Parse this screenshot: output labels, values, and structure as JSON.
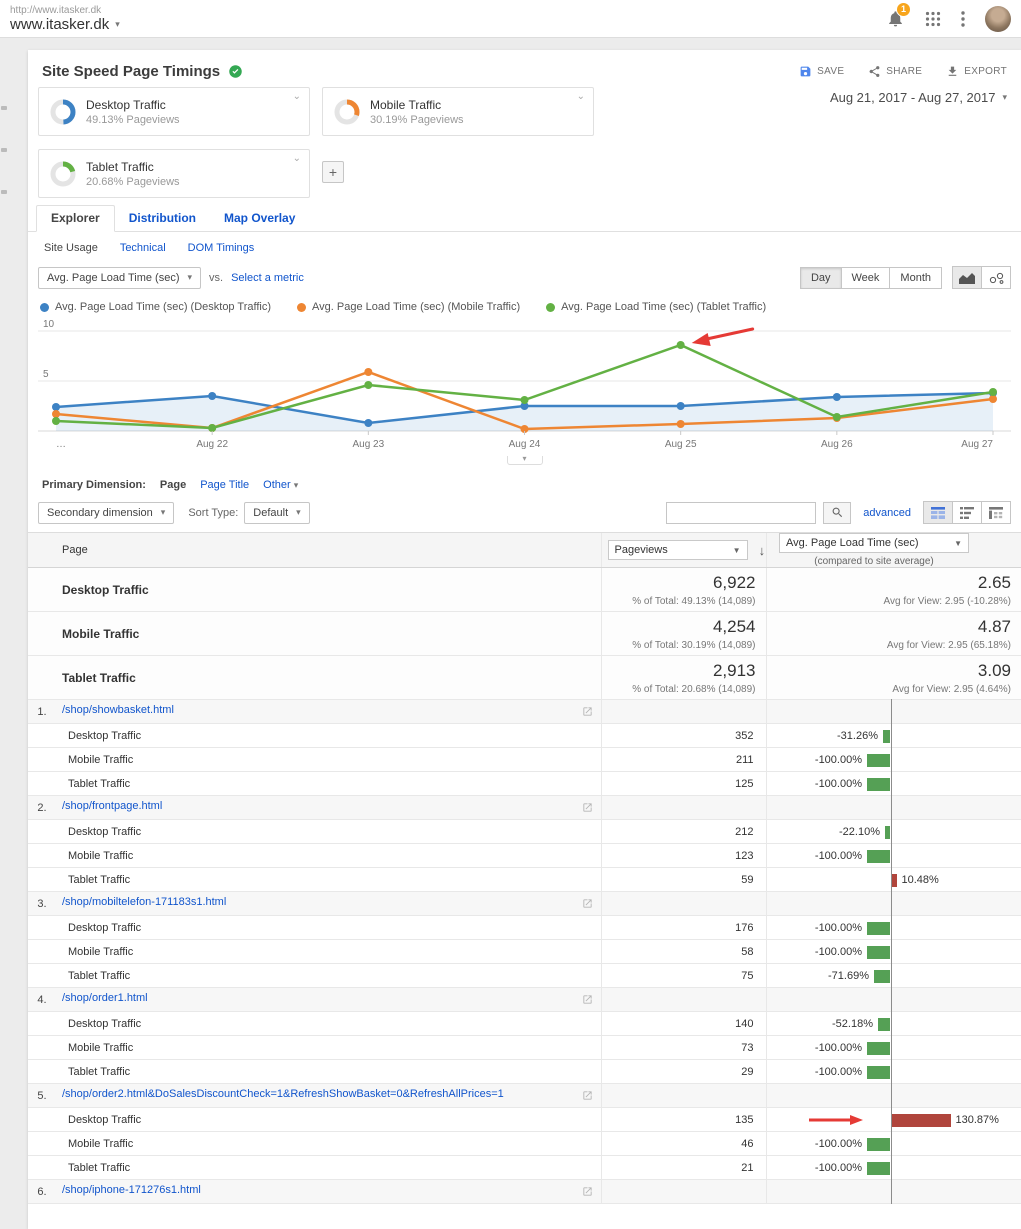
{
  "appbar": {
    "url": "http://www.itasker.dk",
    "site": "www.itasker.dk",
    "badge": "1"
  },
  "report": {
    "title": "Site Speed Page Timings",
    "save": "SAVE",
    "share": "SHARE",
    "export": "EXPORT",
    "date_range": "Aug 21, 2017 - Aug 27, 2017",
    "add_segment": "+"
  },
  "segments": [
    {
      "name": "Desktop Traffic",
      "detail": "49.13% Pageviews",
      "color": "#3d82c4",
      "fraction": 0.49
    },
    {
      "name": "Mobile Traffic",
      "detail": "30.19% Pageviews",
      "color": "#ee8633",
      "fraction": 0.3
    },
    {
      "name": "Tablet Traffic",
      "detail": "20.68% Pageviews",
      "color": "#63b144",
      "fraction": 0.21
    }
  ],
  "tabs": {
    "explorer": "Explorer",
    "distribution": "Distribution",
    "map_overlay": "Map Overlay"
  },
  "subtabs": {
    "site_usage": "Site Usage",
    "technical": "Technical",
    "dom_timings": "DOM Timings"
  },
  "metric_bar": {
    "metric": "Avg. Page Load Time (sec)",
    "vs": "vs.",
    "select_metric": "Select a metric",
    "day": "Day",
    "week": "Week",
    "month": "Month"
  },
  "legend": [
    {
      "label": "Avg. Page Load Time (sec) (Desktop Traffic)",
      "color": "#3d82c4"
    },
    {
      "label": "Avg. Page Load Time (sec) (Mobile Traffic)",
      "color": "#ee8633"
    },
    {
      "label": "Avg. Page Load Time (sec) (Tablet Traffic)",
      "color": "#63b144"
    }
  ],
  "chart_data": {
    "type": "line",
    "categories": [
      "Aug 21",
      "Aug 22",
      "Aug 23",
      "Aug 24",
      "Aug 25",
      "Aug 26",
      "Aug 27"
    ],
    "tick_labels": [
      "…",
      "Aug 22",
      "Aug 23",
      "Aug 24",
      "Aug 25",
      "Aug 26",
      "Aug 27"
    ],
    "ylim": [
      0,
      10
    ],
    "yticks": [
      5,
      10
    ],
    "ylabel": "Avg. Page Load Time (sec)",
    "grid": true,
    "legend_position": "top",
    "series": [
      {
        "name": "Avg. Page Load Time (sec) (Desktop Traffic)",
        "color": "#3d82c4",
        "area": true,
        "values": [
          2.4,
          3.5,
          0.8,
          2.5,
          2.5,
          3.4,
          3.8
        ]
      },
      {
        "name": "Avg. Page Load Time (sec) (Mobile Traffic)",
        "color": "#ee8633",
        "area": false,
        "values": [
          1.7,
          0.3,
          5.9,
          0.2,
          0.7,
          1.3,
          3.2
        ]
      },
      {
        "name": "Avg. Page Load Time (sec) (Tablet Traffic)",
        "color": "#63b144",
        "area": false,
        "values": [
          1.0,
          0.3,
          4.6,
          3.1,
          8.6,
          1.4,
          3.9
        ]
      }
    ],
    "annotation": "red arrow pointing at Tablet Traffic peak on Aug 25"
  },
  "dimension_bar": {
    "label": "Primary Dimension:",
    "page": "Page",
    "page_title": "Page Title",
    "other": "Other"
  },
  "toolbar": {
    "secondary_dimension": "Secondary dimension",
    "sort_type_label": "Sort Type:",
    "sort_type": "Default",
    "advanced": "advanced",
    "search_value": ""
  },
  "table": {
    "col_page": "Page",
    "col_pageviews": "Pageviews",
    "col_metric": "Avg. Page Load Time (sec)",
    "col_metric_sub": "(compared to site average)",
    "summary": [
      {
        "name": "Desktop Traffic",
        "pageviews": "6,922",
        "pageviews_sub": "% of Total: 49.13% (14,089)",
        "value": "2.65",
        "value_sub": "Avg for View: 2.95 (-10.28%)"
      },
      {
        "name": "Mobile Traffic",
        "pageviews": "4,254",
        "pageviews_sub": "% of Total: 30.19% (14,089)",
        "value": "4.87",
        "value_sub": "Avg for View: 2.95 (65.18%)"
      },
      {
        "name": "Tablet Traffic",
        "pageviews": "2,913",
        "pageviews_sub": "% of Total: 20.68% (14,089)",
        "value": "3.09",
        "value_sub": "Avg for View: 2.95 (4.64%)"
      }
    ],
    "groups": [
      {
        "index": "1.",
        "page": "/shop/showbasket.html",
        "rows": [
          {
            "name": "Desktop Traffic",
            "pageviews": "352",
            "delta": "-31.26%",
            "delta_value": -31.26
          },
          {
            "name": "Mobile Traffic",
            "pageviews": "211",
            "delta": "-100.00%",
            "delta_value": -100
          },
          {
            "name": "Tablet Traffic",
            "pageviews": "125",
            "delta": "-100.00%",
            "delta_value": -100
          }
        ]
      },
      {
        "index": "2.",
        "page": "/shop/frontpage.html",
        "rows": [
          {
            "name": "Desktop Traffic",
            "pageviews": "212",
            "delta": "-22.10%",
            "delta_value": -22.1
          },
          {
            "name": "Mobile Traffic",
            "pageviews": "123",
            "delta": "-100.00%",
            "delta_value": -100
          },
          {
            "name": "Tablet Traffic",
            "pageviews": "59",
            "delta": "10.48%",
            "delta_value": 10.48
          }
        ]
      },
      {
        "index": "3.",
        "page": "/shop/mobiltelefon-171183s1.html",
        "rows": [
          {
            "name": "Desktop Traffic",
            "pageviews": "176",
            "delta": "-100.00%",
            "delta_value": -100
          },
          {
            "name": "Mobile Traffic",
            "pageviews": "58",
            "delta": "-100.00%",
            "delta_value": -100
          },
          {
            "name": "Tablet Traffic",
            "pageviews": "75",
            "delta": "-71.69%",
            "delta_value": -71.69
          }
        ]
      },
      {
        "index": "4.",
        "page": "/shop/order1.html",
        "rows": [
          {
            "name": "Desktop Traffic",
            "pageviews": "140",
            "delta": "-52.18%",
            "delta_value": -52.18
          },
          {
            "name": "Mobile Traffic",
            "pageviews": "73",
            "delta": "-100.00%",
            "delta_value": -100
          },
          {
            "name": "Tablet Traffic",
            "pageviews": "29",
            "delta": "-100.00%",
            "delta_value": -100
          }
        ]
      },
      {
        "index": "5.",
        "page": "/shop/order2.html&DoSalesDiscountCheck=1&RefreshShowBasket=0&RefreshAllPrices=1",
        "rows": [
          {
            "name": "Desktop Traffic",
            "pageviews": "135",
            "delta": "130.87%",
            "delta_value": 130.87,
            "arrow": true
          },
          {
            "name": "Mobile Traffic",
            "pageviews": "46",
            "delta": "-100.00%",
            "delta_value": -100
          },
          {
            "name": "Tablet Traffic",
            "pageviews": "21",
            "delta": "-100.00%",
            "delta_value": -100
          }
        ]
      },
      {
        "index": "6.",
        "page": "/shop/iphone-171276s1.html",
        "rows": []
      }
    ]
  },
  "colors": {
    "link": "#1155cc",
    "negative_bar": "#55a055",
    "positive_bar": "#b0453c",
    "annotation": "#e53a35",
    "verified": "#34a853",
    "badge": "#f7a51c"
  }
}
